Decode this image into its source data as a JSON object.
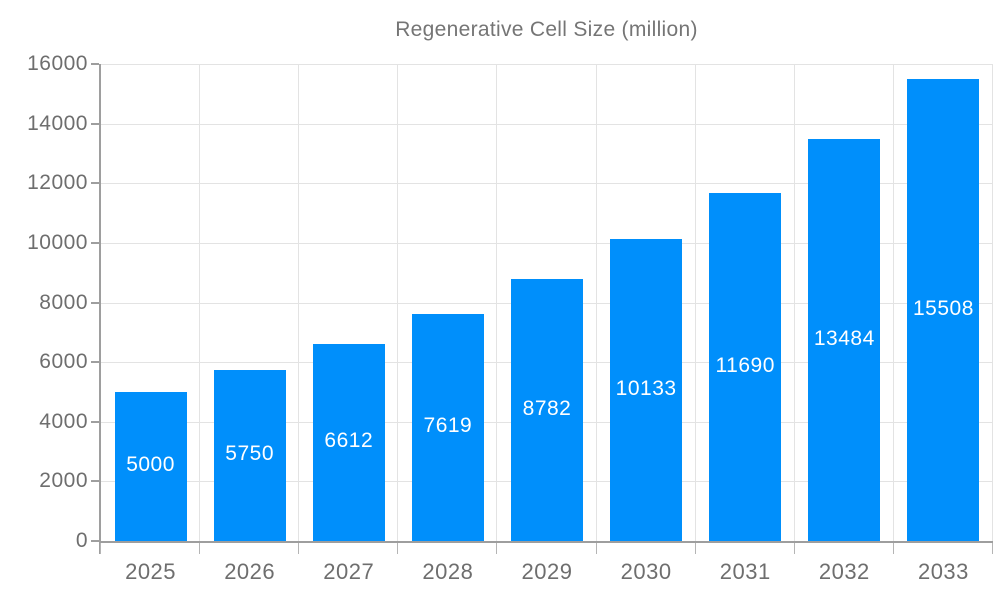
{
  "legend": {
    "label": "Regenerative Cell Size (million)"
  },
  "colors": {
    "bar": "#008FFB",
    "grid": "#e3e3e3",
    "axis": "#9e9e9e",
    "tick_text": "#6e6e6e",
    "legend_text": "#757575",
    "bar_label_text": "#ffffff",
    "background": "#ffffff"
  },
  "chart_data": {
    "type": "bar",
    "title": "Regenerative Cell Size (million)",
    "categories": [
      "2025",
      "2026",
      "2027",
      "2028",
      "2029",
      "2030",
      "2031",
      "2032",
      "2033"
    ],
    "values": [
      5000,
      5750,
      6612,
      7619,
      8782,
      10133,
      11690,
      13484,
      15508
    ],
    "series_name": "Regenerative Cell Size (million)",
    "xlabel": "",
    "ylabel": "",
    "ylim": [
      0,
      16000
    ],
    "ytick_step": 2000,
    "ytick_labels": [
      "0",
      "2000",
      "4000",
      "6000",
      "8000",
      "10000",
      "12000",
      "14000",
      "16000"
    ],
    "grid": true,
    "legend_position": "top",
    "value_labels": "inside-center-white"
  }
}
